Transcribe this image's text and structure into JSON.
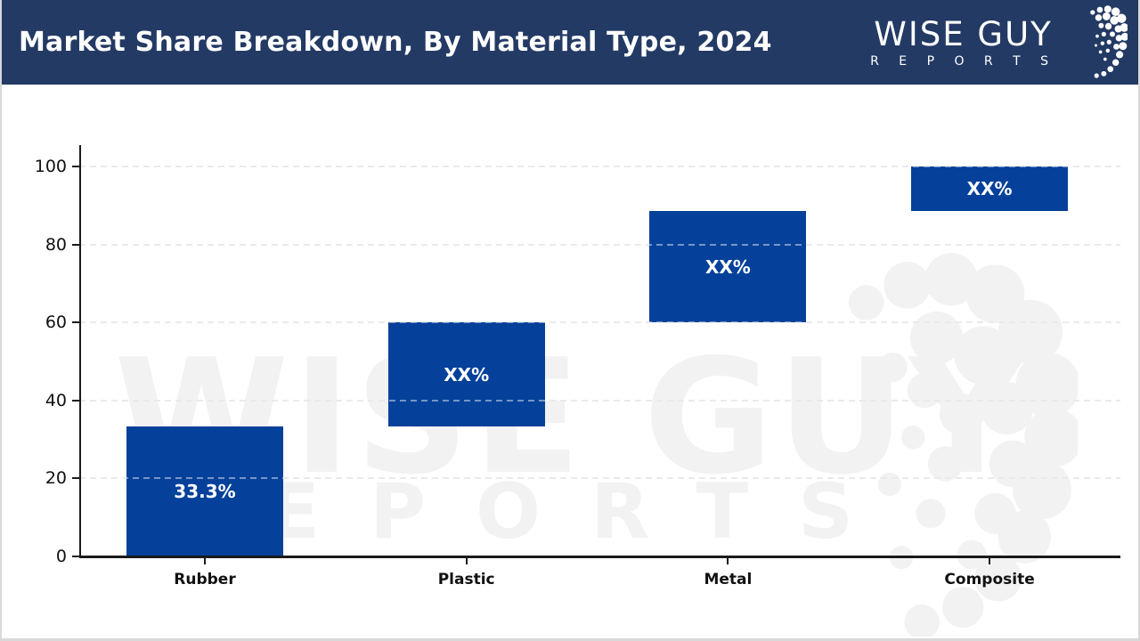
{
  "header": {
    "title": "Market Share Breakdown, By Material Type, 2024",
    "logo": {
      "line1": "WISE GUY",
      "line2": "R E P O R T S"
    }
  },
  "watermark": {
    "line1": "WISE GUY",
    "line2": "REPORTS"
  },
  "colors": {
    "header_bg": "#233a64",
    "bar": "#05419a",
    "bar_label": "#ffffff",
    "axis": "#1a1a1a",
    "grid": "#d9d9d9",
    "watermark": "#f2f2f3",
    "border": "#d9d9d9"
  },
  "chart_data": {
    "type": "bar",
    "subtype": "waterfall",
    "title": "Market Share Breakdown, By Material Type, 2024",
    "categories": [
      "Rubber",
      "Plastic",
      "Metal",
      "Composite"
    ],
    "series": [
      {
        "name": "Market Share",
        "starts": [
          0,
          33.3,
          60,
          88.6
        ],
        "ends": [
          33.3,
          60,
          88.6,
          100
        ],
        "values": [
          33.3,
          26.7,
          28.6,
          11.4
        ]
      }
    ],
    "bar_labels": [
      "33.3%",
      "XX%",
      "XX%",
      "XX%"
    ],
    "xlabel": "",
    "ylabel": "",
    "ylim": [
      0,
      100
    ],
    "yticks": [
      0,
      20,
      40,
      60,
      80,
      100
    ],
    "grid": "horizontal-dashed",
    "legend": "none"
  }
}
